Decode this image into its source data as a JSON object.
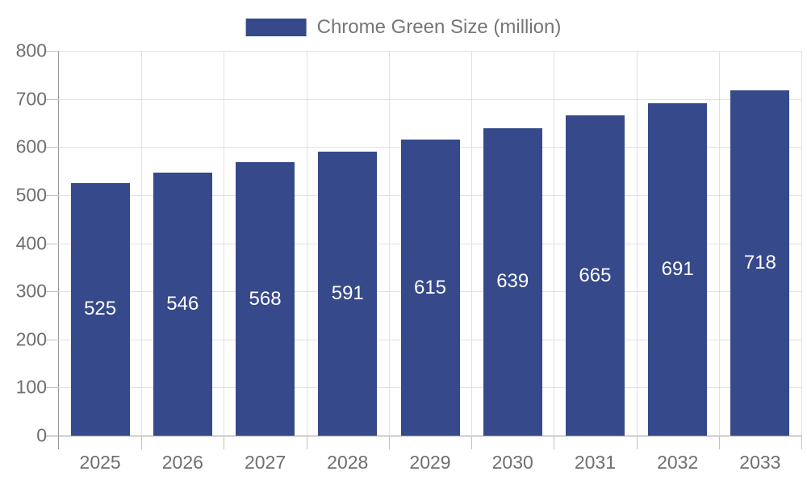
{
  "chart_data": {
    "type": "bar",
    "title": "",
    "legend_label": "Chrome Green Size (million)",
    "legend_position": "top-center",
    "categories": [
      "2025",
      "2026",
      "2027",
      "2028",
      "2029",
      "2030",
      "2031",
      "2032",
      "2033"
    ],
    "values": [
      525,
      546,
      568,
      591,
      615,
      639,
      665,
      691,
      718
    ],
    "xlabel": "",
    "ylabel": "",
    "ylim": [
      0,
      800
    ],
    "ytick_step": 100,
    "yticks": [
      0,
      100,
      200,
      300,
      400,
      500,
      600,
      700,
      800
    ],
    "grid": "horizontal-value-lines and vertical-category-boundary-lines",
    "value_labels": "inside-center-white",
    "colors": {
      "bar": "#36498a",
      "value_label": "#ffffff",
      "axis_line": "#999999",
      "tick_line": "#c0c0c8",
      "grid_line": "#e0e0e6",
      "tick_label": "#6f6f6f",
      "legend_text": "#757575",
      "background": "#ffffff"
    }
  }
}
